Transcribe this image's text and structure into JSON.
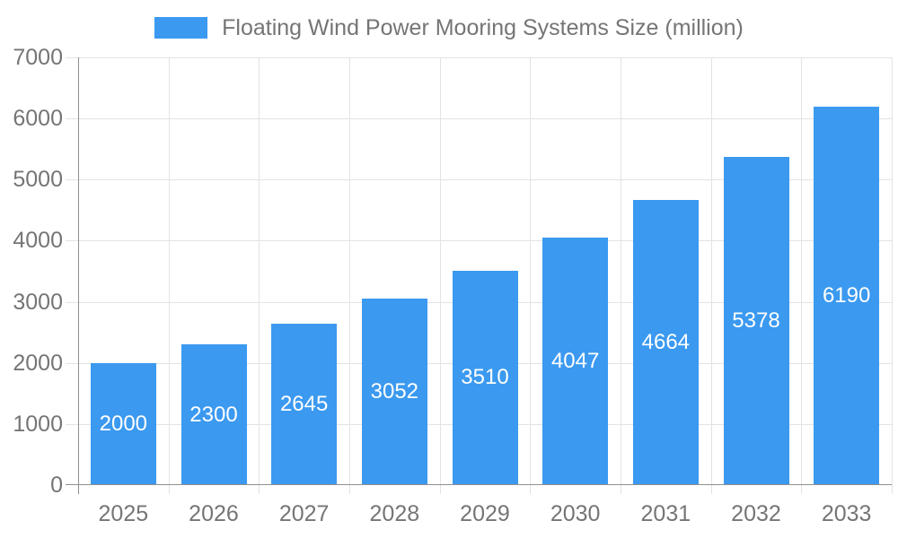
{
  "chart_data": {
    "type": "bar",
    "title": "Floating Wind Power Mooring Systems Size (million)",
    "legend": {
      "position": "top",
      "label": "Floating Wind Power Mooring Systems Size (million)"
    },
    "categories": [
      "2025",
      "2026",
      "2027",
      "2028",
      "2029",
      "2030",
      "2031",
      "2032",
      "2033"
    ],
    "series": [
      {
        "name": "Floating Wind Power Mooring Systems Size (million)",
        "values": [
          2000,
          2300,
          2645,
          3052,
          3510,
          4047,
          4664,
          5378,
          6190
        ]
      }
    ],
    "data_labels_shown": true,
    "xlabel": "",
    "ylabel": "",
    "ylim": [
      0,
      7000
    ],
    "y_ticks": [
      0,
      1000,
      2000,
      3000,
      4000,
      5000,
      6000,
      7000
    ],
    "grid": true,
    "colors": {
      "bar": "#3b99f0",
      "value_label": "#ffffff",
      "axis_text": "#757575",
      "gridline": "#e3e3e3",
      "axis_line": "#909090",
      "background": "#ffffff"
    }
  }
}
